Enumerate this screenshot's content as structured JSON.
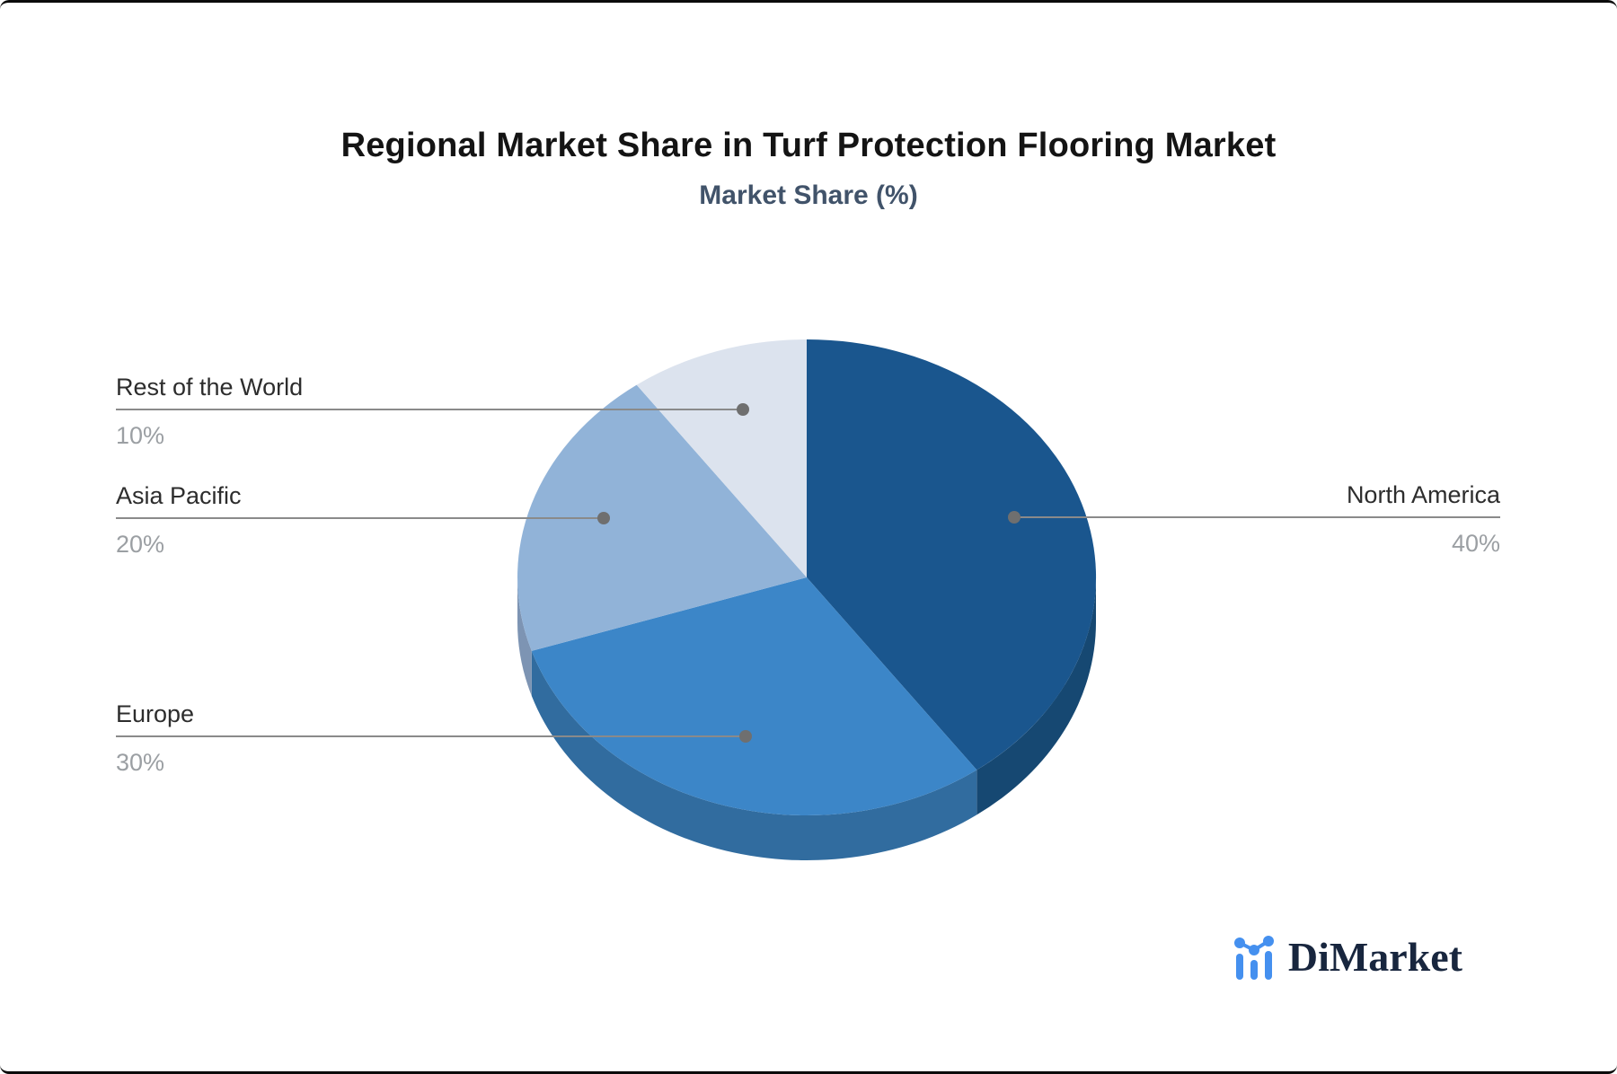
{
  "title": "Regional Market Share in Turf Protection Flooring Market",
  "subtitle": "Market Share (%)",
  "logo": {
    "name": "DiMarket",
    "icon": "bar-chart-trend-icon",
    "icon_color": "#4590ef",
    "text_color": "#18263e"
  },
  "chart_data": {
    "type": "pie",
    "title": "Regional Market Share in Turf Protection Flooring Market",
    "subtitle": "Market Share (%)",
    "unit": "%",
    "start_angle_deg": 0,
    "direction": "clockwise",
    "effect": "3d-depth",
    "legend_position": "callout-lines",
    "grid": false,
    "background_color": "#ffffff",
    "callout_line_color": "#8a8a8a",
    "callout_dot_color": "#6f6f6f",
    "slices": [
      {
        "label": "North America",
        "value": 40,
        "value_label": "40%",
        "color": "#1a568e",
        "side_color": "#164872"
      },
      {
        "label": "Europe",
        "value": 30,
        "value_label": "30%",
        "color": "#3c86c8",
        "side_color": "#316c9f"
      },
      {
        "label": "Asia Pacific",
        "value": 20,
        "value_label": "20%",
        "color": "#91b3d8",
        "side_color": "#7d94b3"
      },
      {
        "label": "Rest of the World",
        "value": 10,
        "value_label": "10%",
        "color": "#dce3ee",
        "side_color": "#b9c3d4"
      }
    ]
  }
}
